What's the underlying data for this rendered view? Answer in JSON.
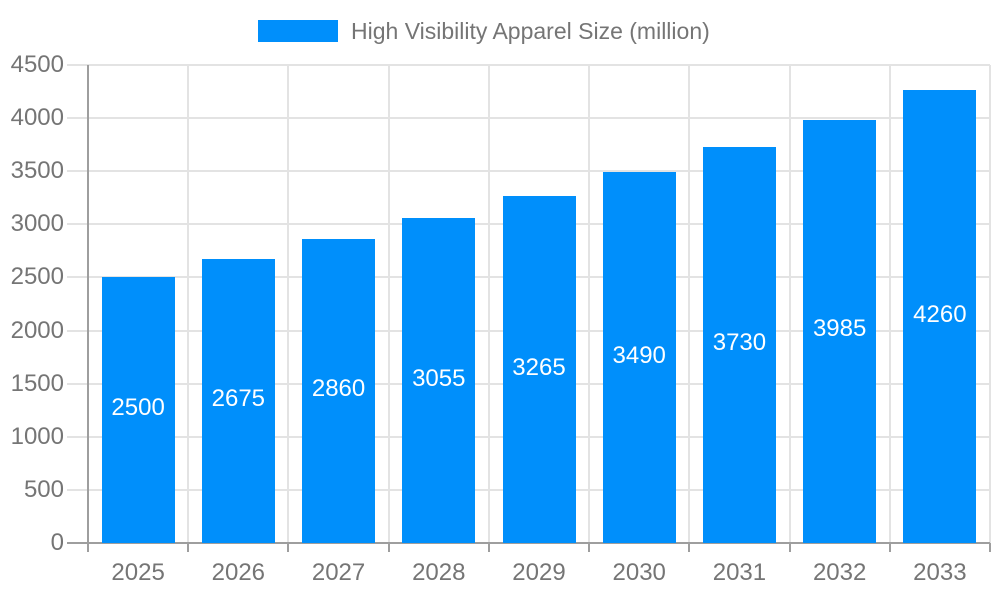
{
  "chart_data": {
    "type": "bar",
    "title": "",
    "legend_label": "High Visibility Apparel Size (million)",
    "legend_position": "top",
    "categories": [
      "2025",
      "2026",
      "2027",
      "2028",
      "2029",
      "2030",
      "2031",
      "2032",
      "2033"
    ],
    "series": [
      {
        "name": "High Visibility Apparel Size (million)",
        "values": [
          2500,
          2675,
          2860,
          3055,
          3265,
          3490,
          3730,
          3985,
          4260
        ]
      }
    ],
    "value_labels_shown": true,
    "xlabel": "",
    "ylabel": "",
    "ylim": [
      0,
      4500
    ],
    "yticks": [
      0,
      500,
      1000,
      1500,
      2000,
      2500,
      3000,
      3500,
      4000,
      4500
    ],
    "grid": true
  },
  "colors": {
    "bar": "#008FFB",
    "grid": "#E3E3E3",
    "axis_line": "#9E9E9E",
    "tick_text": "#757575",
    "legend_text": "#757575",
    "value_label_text": "#FFFFFF",
    "background": "#FFFFFF"
  }
}
